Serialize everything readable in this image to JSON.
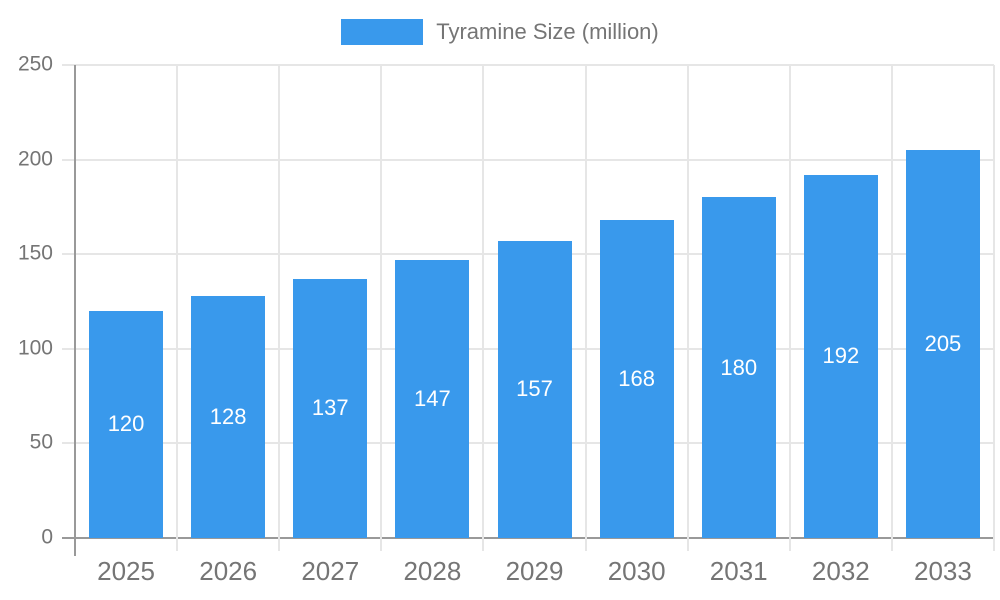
{
  "chart_data": {
    "type": "bar",
    "title": "",
    "series_name": "Tyramine Size (million)",
    "categories": [
      "2025",
      "2026",
      "2027",
      "2028",
      "2029",
      "2030",
      "2031",
      "2032",
      "2033"
    ],
    "values": [
      120,
      128,
      137,
      147,
      157,
      168,
      180,
      192,
      205
    ],
    "xlabel": "",
    "ylabel": "",
    "ylim": [
      0,
      250
    ],
    "y_ticks": [
      0,
      50,
      100,
      150,
      200,
      250
    ],
    "grid": true,
    "legend_position": "top",
    "colors": {
      "bar": "#3999EC",
      "bar_label": "#FFFFFF",
      "axis_text": "#757575",
      "grid_line": "#E6E6E6",
      "axis_line": "#999999",
      "background": "#FFFFFF"
    }
  }
}
